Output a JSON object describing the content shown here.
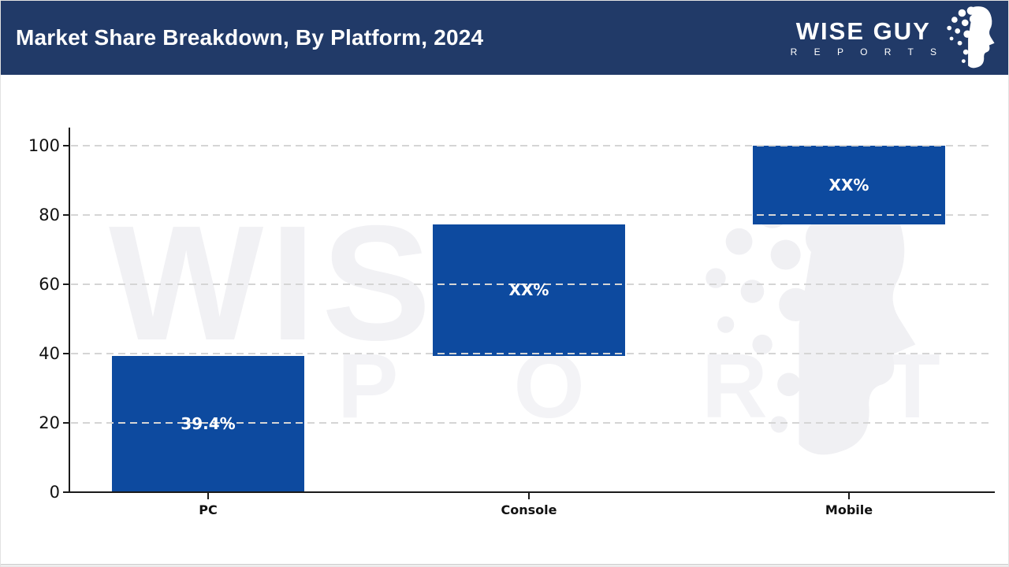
{
  "header": {
    "title": "Market Share Breakdown, By Platform, 2024",
    "bg_color": "#213a68",
    "logo": {
      "line1": "WISE GUY",
      "line2": "R E P O R T S"
    }
  },
  "watermark": {
    "line1": "WISE",
    "line2": "P O R T S"
  },
  "chart_data": {
    "type": "bar",
    "subtype": "floating-waterfall",
    "title": "Market Share Breakdown, By Platform, 2024",
    "categories": [
      "PC",
      "Console",
      "Mobile"
    ],
    "bars": [
      {
        "category": "PC",
        "label": "39.4%",
        "start": 0,
        "end": 39.4
      },
      {
        "category": "Console",
        "label": "XX%",
        "start": 39.4,
        "end": 77.2
      },
      {
        "category": "Mobile",
        "label": "XX%",
        "start": 77.2,
        "end": 100
      }
    ],
    "xlabel": "",
    "ylabel": "",
    "ylim": [
      0,
      100
    ],
    "yticks": [
      0,
      20,
      40,
      60,
      80,
      100
    ],
    "grid": "dashed-horizontal",
    "legend": "none",
    "bar_color": "#0d4a9f",
    "label_color": "#ffffff"
  }
}
